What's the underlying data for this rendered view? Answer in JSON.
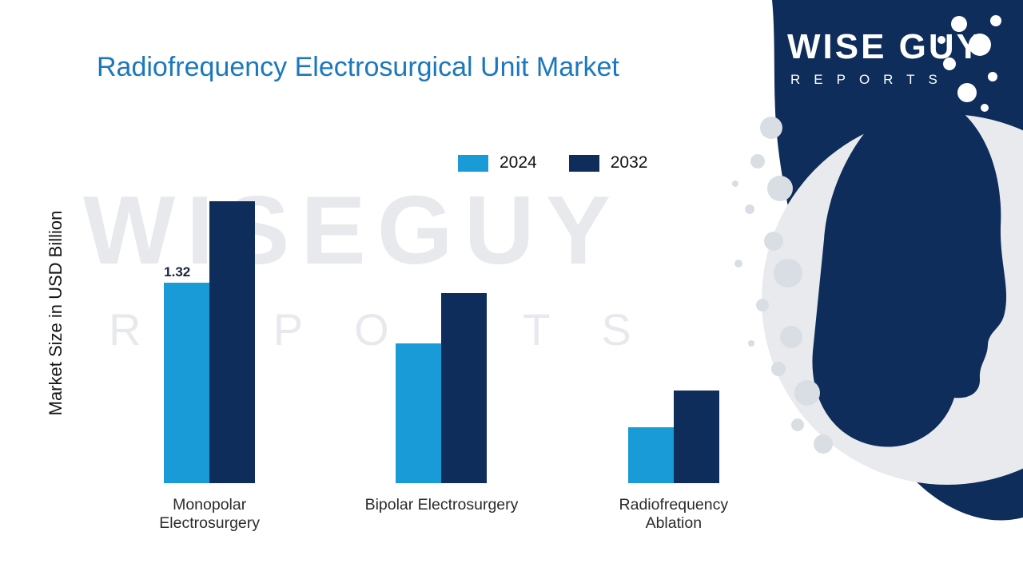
{
  "title": "Radiofrequency Electrosurgical Unit Market",
  "watermark": {
    "line1": "WISEGUY",
    "line2": "REPORTS"
  },
  "logo": {
    "line1": "WISE GUY",
    "line2": "REPORTS"
  },
  "colors": {
    "title_blue": "#1B78BE",
    "series_2024": "#199BD7",
    "series_2032": "#0E2D5B",
    "brand_navy": "#0E2D5B",
    "face_gray": "#E8EAEE"
  },
  "chart_data": {
    "type": "bar",
    "title": "Radiofrequency Electrosurgical Unit Market",
    "ylabel": "Market Size in USD Billion",
    "xlabel": "",
    "categories": [
      "Monopolar Electrosurgery",
      "Bipolar Electrosurgery",
      "Radiofrequency Ablation"
    ],
    "series": [
      {
        "name": "2024",
        "color": "#199BD7",
        "values": [
          1.32,
          0.92,
          0.37
        ]
      },
      {
        "name": "2032",
        "color": "#0E2D5B",
        "values": [
          1.86,
          1.25,
          0.61
        ]
      }
    ],
    "value_labels": [
      {
        "series": "2024",
        "category": "Monopolar Electrosurgery",
        "text": "1.32"
      }
    ],
    "ylim": [
      0,
      2.0
    ],
    "grid": false,
    "axes_visible": false,
    "legend_position": "top"
  }
}
